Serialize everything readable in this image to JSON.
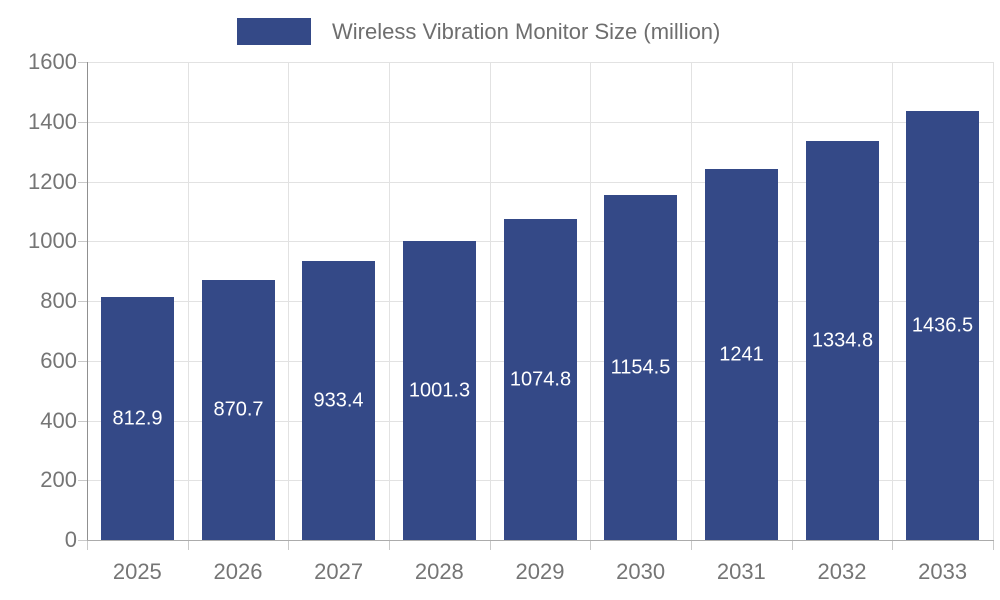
{
  "legend": {
    "label": "Wireless Vibration Monitor Size (million)"
  },
  "chart_data": {
    "type": "bar",
    "title": "Wireless Vibration Monitor Size (million)",
    "categories": [
      "2025",
      "2026",
      "2027",
      "2028",
      "2029",
      "2030",
      "2031",
      "2032",
      "2033"
    ],
    "values": [
      812.9,
      870.7,
      933.4,
      1001.3,
      1074.8,
      1154.5,
      1241,
      1334.8,
      1436.5
    ],
    "value_labels": [
      "812.9",
      "870.7",
      "933.4",
      "1001.3",
      "1074.8",
      "1154.5",
      "1241",
      "1334.8",
      "1436.5"
    ],
    "xlabel": "",
    "ylabel": "",
    "ylim": [
      0,
      1600
    ],
    "yticks": [
      0,
      200,
      400,
      600,
      800,
      1000,
      1200,
      1400,
      1600
    ],
    "grid": true,
    "legend_position": "top",
    "bar_color": "#344987",
    "value_label_color": "#ffffff",
    "axis_text_color": "#757575",
    "grid_color": "#e2e2e2",
    "axis_line_color": "#909090",
    "background_color": "#ffffff"
  }
}
